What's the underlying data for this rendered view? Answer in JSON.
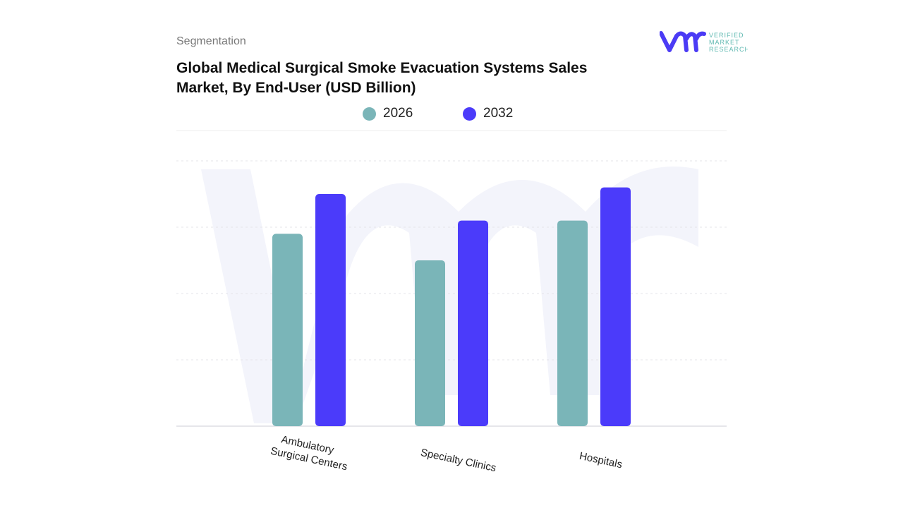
{
  "header": {
    "section": "Segmentation",
    "title": "Global Medical Surgical Smoke Evacuation Systems Sales Market, By End-User (USD Billion)"
  },
  "logo": {
    "text_lines": [
      "VERIFIED",
      "MARKET",
      "RESEARCH"
    ],
    "colors": {
      "mark": "#4B3BF5",
      "text": "#5DB8B0"
    }
  },
  "chart_data": {
    "type": "bar",
    "title": "Global Medical Surgical Smoke Evacuation Systems Sales Market, By End-User (USD Billion)",
    "categories": [
      "Ambulatory Surgical Centers",
      "Specialty Clinics",
      "Hospitals"
    ],
    "series": [
      {
        "name": "2026",
        "color": "#7AB5B8",
        "values": [
          2.9,
          2.5,
          3.1
        ]
      },
      {
        "name": "2032",
        "color": "#4B3BFA",
        "values": [
          3.5,
          3.1,
          3.6
        ]
      }
    ],
    "ylim": [
      0,
      4
    ],
    "grid": true,
    "y_tick_labels_shown": false,
    "legend_placement": "top-center",
    "xlabel": "",
    "ylabel": ""
  }
}
